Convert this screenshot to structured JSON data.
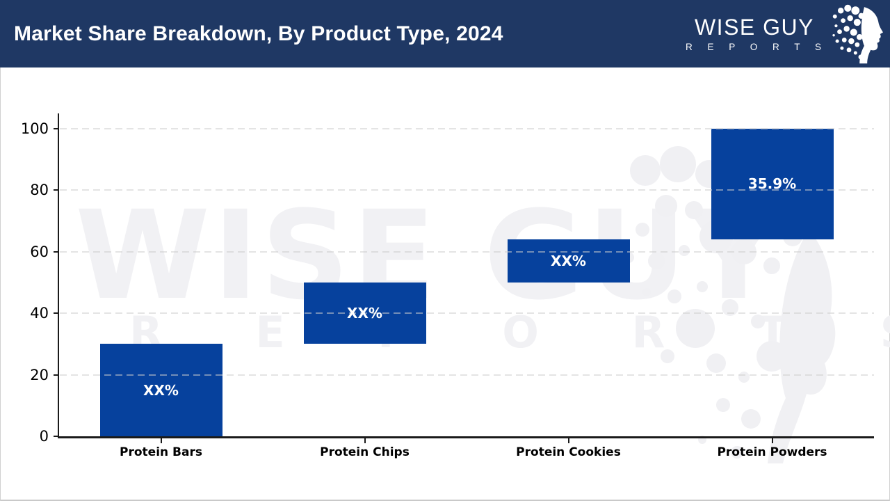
{
  "header": {
    "title": "Market Share Breakdown, By Product Type, 2024",
    "logo": {
      "line1": "WISE GUY",
      "line2": "R E P O R T S"
    }
  },
  "watermark": {
    "line1": "WISE GUY",
    "line2": "R E P O R T S"
  },
  "colors": {
    "header_bg": "#1F3864",
    "bar": "#06419D",
    "axis": "#1A1A1A",
    "grid": "#CDCDCD",
    "watermark": "#F1F1F4",
    "page_bg": "#FFFFFF",
    "bar_label": "#FFFFFF"
  },
  "chart_data": {
    "type": "bar",
    "subtype": "waterfall",
    "title": "Market Share Breakdown, By Product Type, 2024",
    "xlabel": "",
    "ylabel": "",
    "categories": [
      "Protein Bars",
      "Protein Chips",
      "Protein Cookies",
      "Protein Powders"
    ],
    "bars": [
      {
        "category": "Protein Bars",
        "start": 0,
        "end": 30,
        "label": "XX%"
      },
      {
        "category": "Protein Chips",
        "start": 30,
        "end": 50,
        "label": "XX%"
      },
      {
        "category": "Protein Cookies",
        "start": 50,
        "end": 64.1,
        "label": "XX%"
      },
      {
        "category": "Protein Powders",
        "start": 64.1,
        "end": 100,
        "label": "35.9%"
      }
    ],
    "ylim": [
      0,
      100
    ],
    "yticks": [
      0,
      20,
      40,
      60,
      80,
      100
    ],
    "grid": "horizontal-dashed",
    "legend": "none"
  }
}
